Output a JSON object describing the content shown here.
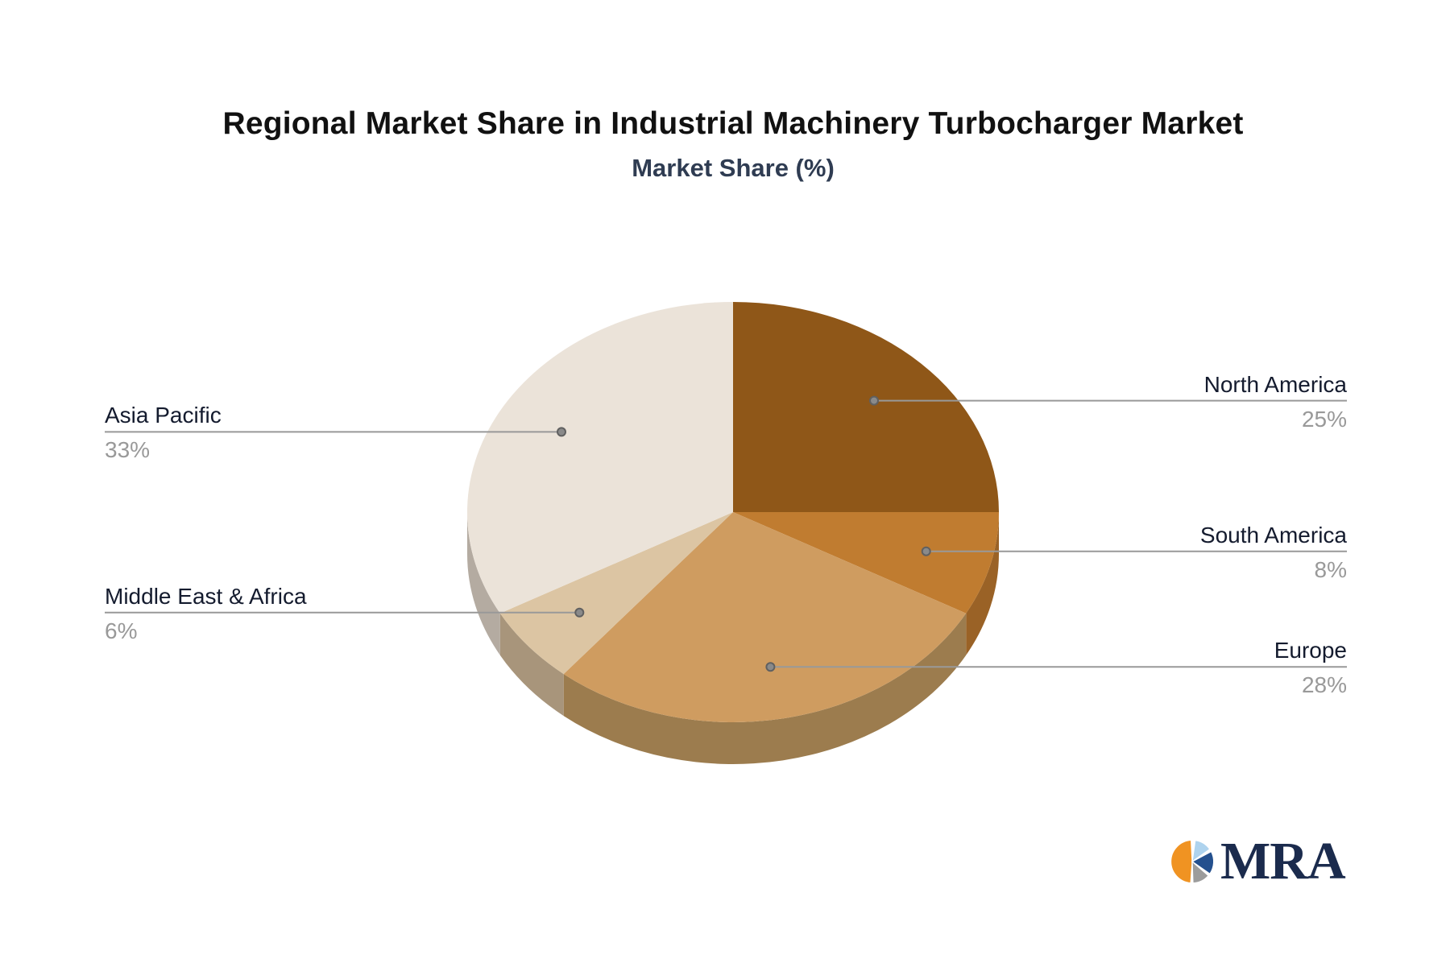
{
  "header": {
    "title_color": "#111111",
    "subtitle_color": "#2f3c52"
  },
  "chart_data": {
    "type": "pie",
    "style": "3d",
    "title": "Regional Market Share in Industrial Machinery Turbocharger Market",
    "subtitle": "Market Share (%)",
    "unit": "%",
    "start_angle": "top",
    "direction": "clockwise",
    "categories": [
      "North America",
      "South America",
      "Europe",
      "Middle East & Africa",
      "Asia Pacific"
    ],
    "values": [
      25,
      8,
      28,
      6,
      33
    ],
    "slices": [
      {
        "name": "North America",
        "value": 25,
        "display": "25%",
        "color": "#8f5718",
        "side_color": "#6e4312",
        "label_side": "right"
      },
      {
        "name": "South America",
        "value": 8,
        "display": "8%",
        "color": "#c07c30",
        "side_color": "#9a6226",
        "label_side": "right"
      },
      {
        "name": "Europe",
        "value": 28,
        "display": "28%",
        "color": "#cf9c60",
        "side_color": "#9c7c4e",
        "label_side": "right"
      },
      {
        "name": "Middle East & Africa",
        "value": 6,
        "display": "6%",
        "color": "#dcc5a3",
        "side_color": "#a8957b",
        "label_side": "left"
      },
      {
        "name": "Asia Pacific",
        "value": 33,
        "display": "33%",
        "color": "#ebe3d9",
        "side_color": "#b4aba1",
        "label_side": "left"
      }
    ],
    "label_color": "#141b2e",
    "value_color": "#999999",
    "line_color": "#999999",
    "legend_position": "none",
    "grid": false
  },
  "logo": {
    "text": "MRA",
    "text_color": "#1b2b4d",
    "icon_colors": {
      "orange": "#f09322",
      "light_blue": "#aed3ee",
      "dark_blue": "#24508e",
      "gray": "#9c9c9c"
    }
  }
}
